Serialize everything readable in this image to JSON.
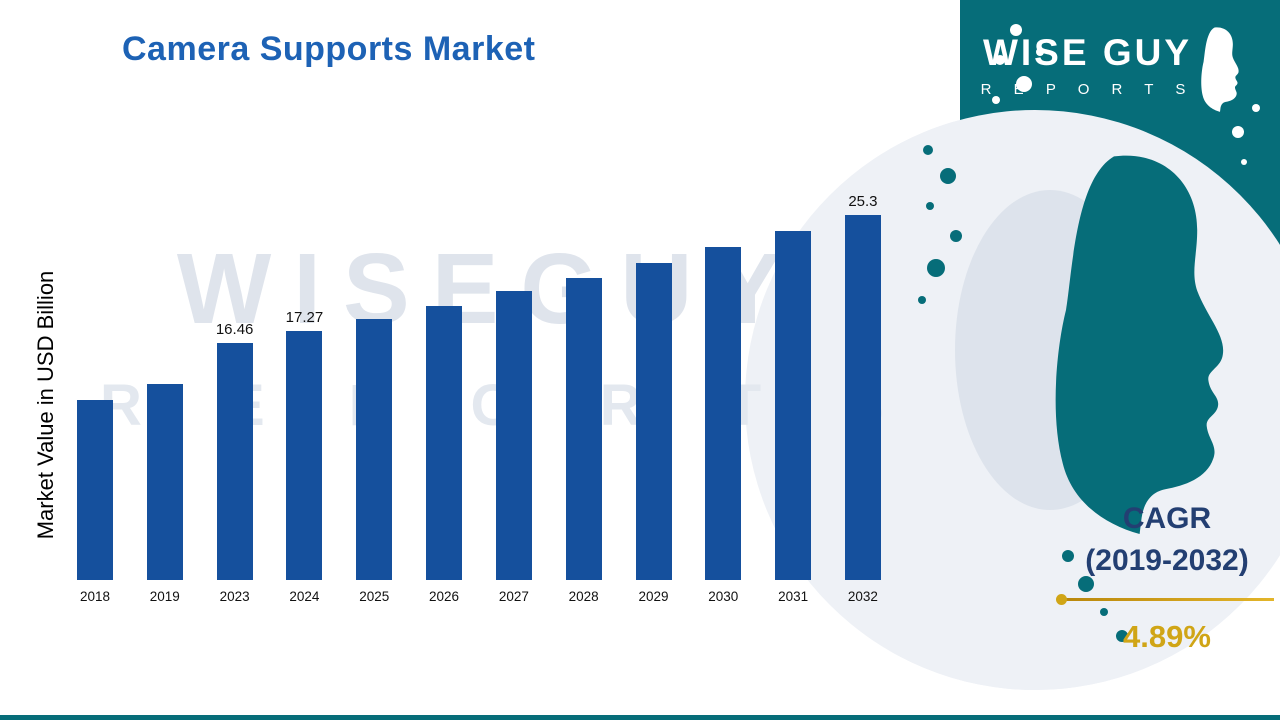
{
  "page": {
    "title": "Camera Supports Market"
  },
  "watermark": {
    "line1": "WISEGUY",
    "line2": "R E P O R T S"
  },
  "logo": {
    "line1": "WISE GUY",
    "line2": "R E P O R T S"
  },
  "sidebar": {
    "cagr_title": "CAGR",
    "cagr_range": "(2019-2032)",
    "cagr_value": "4.89%"
  },
  "colors": {
    "bar_blue": "#15509d",
    "title_blue": "#1d62b5",
    "teal": "#066d79",
    "gold": "#d0a516",
    "navy_text": "#233f72",
    "light_circle": "#eef1f6",
    "watermark_gray": "#dfe4ec"
  },
  "chart_data": {
    "type": "bar",
    "title": "Camera Supports Market",
    "xlabel": "",
    "ylabel": "Market Value in USD Billion",
    "categories": [
      "2018",
      "2019",
      "2023",
      "2024",
      "2025",
      "2026",
      "2027",
      "2028",
      "2029",
      "2030",
      "2031",
      "2032"
    ],
    "values": [
      12.5,
      13.6,
      16.46,
      17.27,
      18.1,
      19.0,
      20.0,
      20.9,
      22.0,
      23.1,
      24.2,
      25.3
    ],
    "data_labels": [
      "",
      "",
      "16.46",
      "17.27",
      "",
      "",
      "",
      "",
      "",
      "",
      "",
      "25.3"
    ],
    "ylim": [
      0,
      27
    ],
    "grid": false,
    "legend": "none",
    "bar_color": "#15509d"
  }
}
